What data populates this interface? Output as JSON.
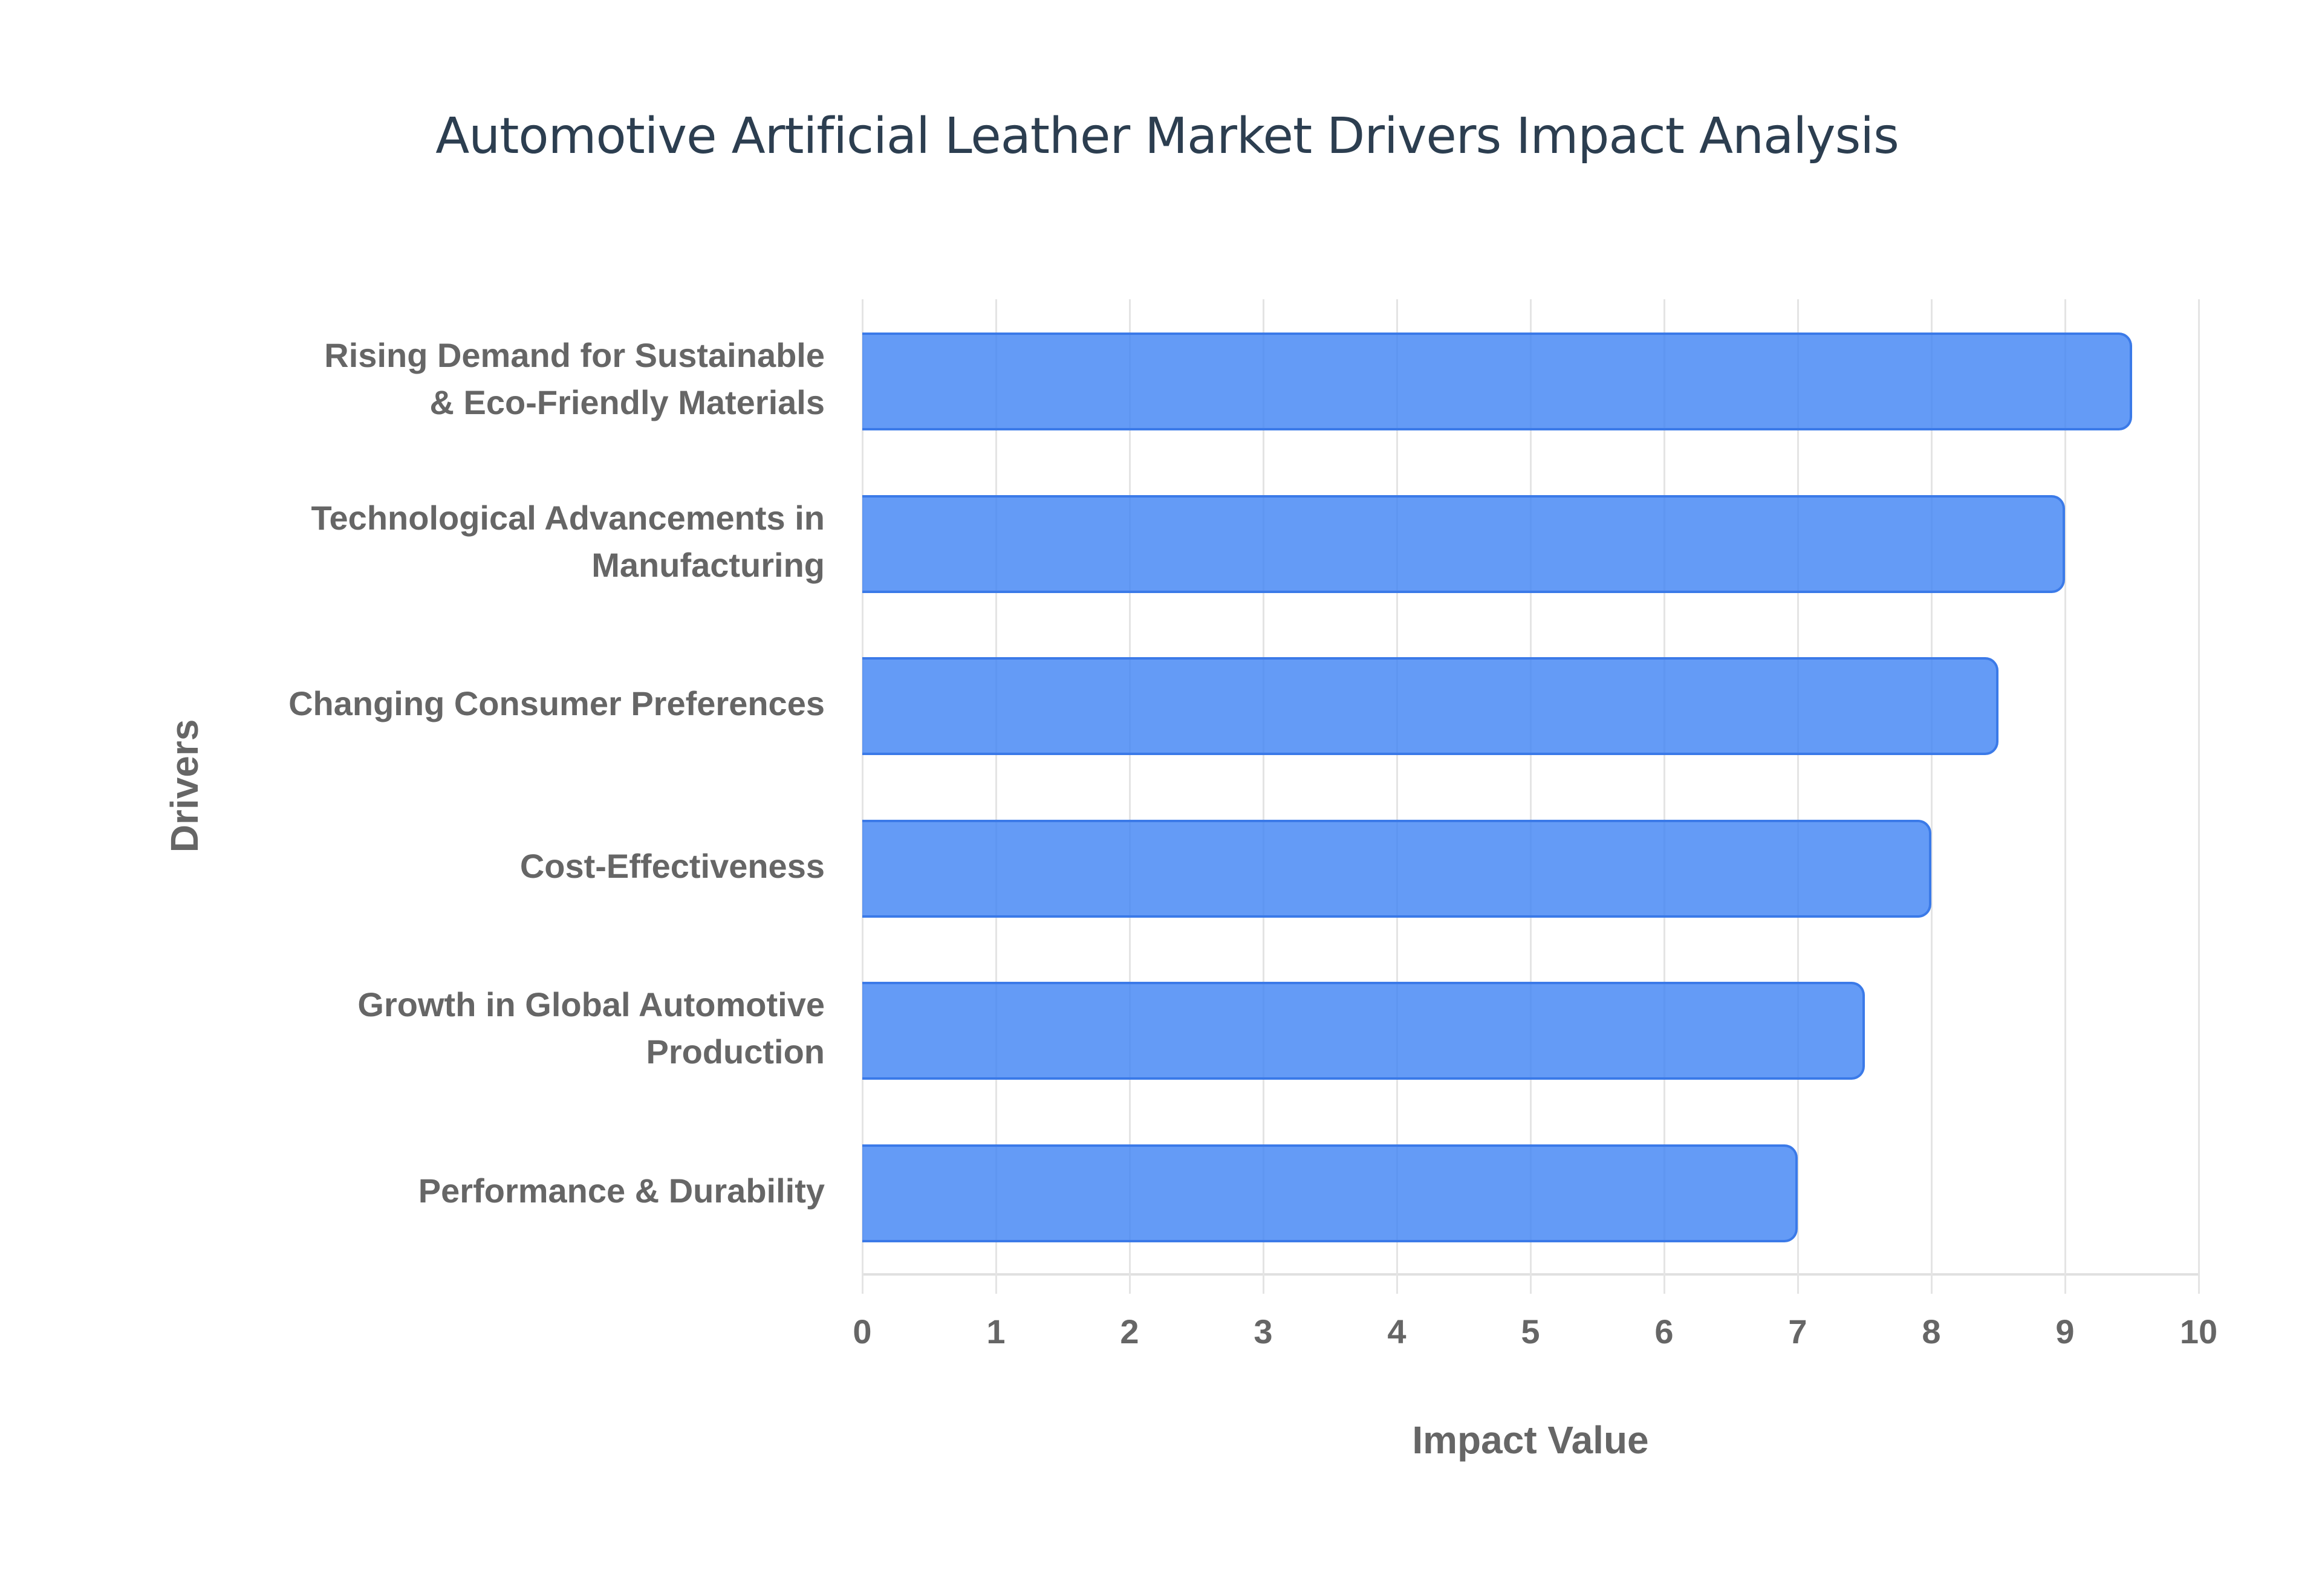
{
  "chart_data": {
    "type": "bar",
    "orientation": "horizontal",
    "title": "Automotive Artificial Leather Market Drivers Impact Analysis",
    "xlabel": "Impact Value",
    "ylabel": "Drivers",
    "categories": [
      "Rising Demand for Sustainable & Eco-Friendly Materials",
      "Technological Advancements in Manufacturing",
      "Changing Consumer Preferences",
      "Cost-Effectiveness",
      "Growth in Global Automotive Production",
      "Performance & Durability"
    ],
    "values": [
      9.5,
      9.0,
      8.5,
      8.0,
      7.5,
      7.0
    ],
    "xlim": [
      0,
      10
    ],
    "x_ticks": [
      "0",
      "1",
      "2",
      "3",
      "4",
      "5",
      "6",
      "7",
      "8",
      "9",
      "10"
    ],
    "grid": true,
    "legend": null,
    "bar_color": "#4285f4"
  },
  "labels": {
    "row0": [
      "Rising Demand for Sustainable",
      "& Eco-Friendly Materials"
    ],
    "row1": [
      "Technological Advancements in",
      "Manufacturing"
    ],
    "row2": [
      "Changing Consumer Preferences"
    ],
    "row3": [
      "Cost-Effectiveness"
    ],
    "row4": [
      "Growth in Global Automotive",
      "Production"
    ],
    "row5": [
      "Performance & Durability"
    ]
  }
}
